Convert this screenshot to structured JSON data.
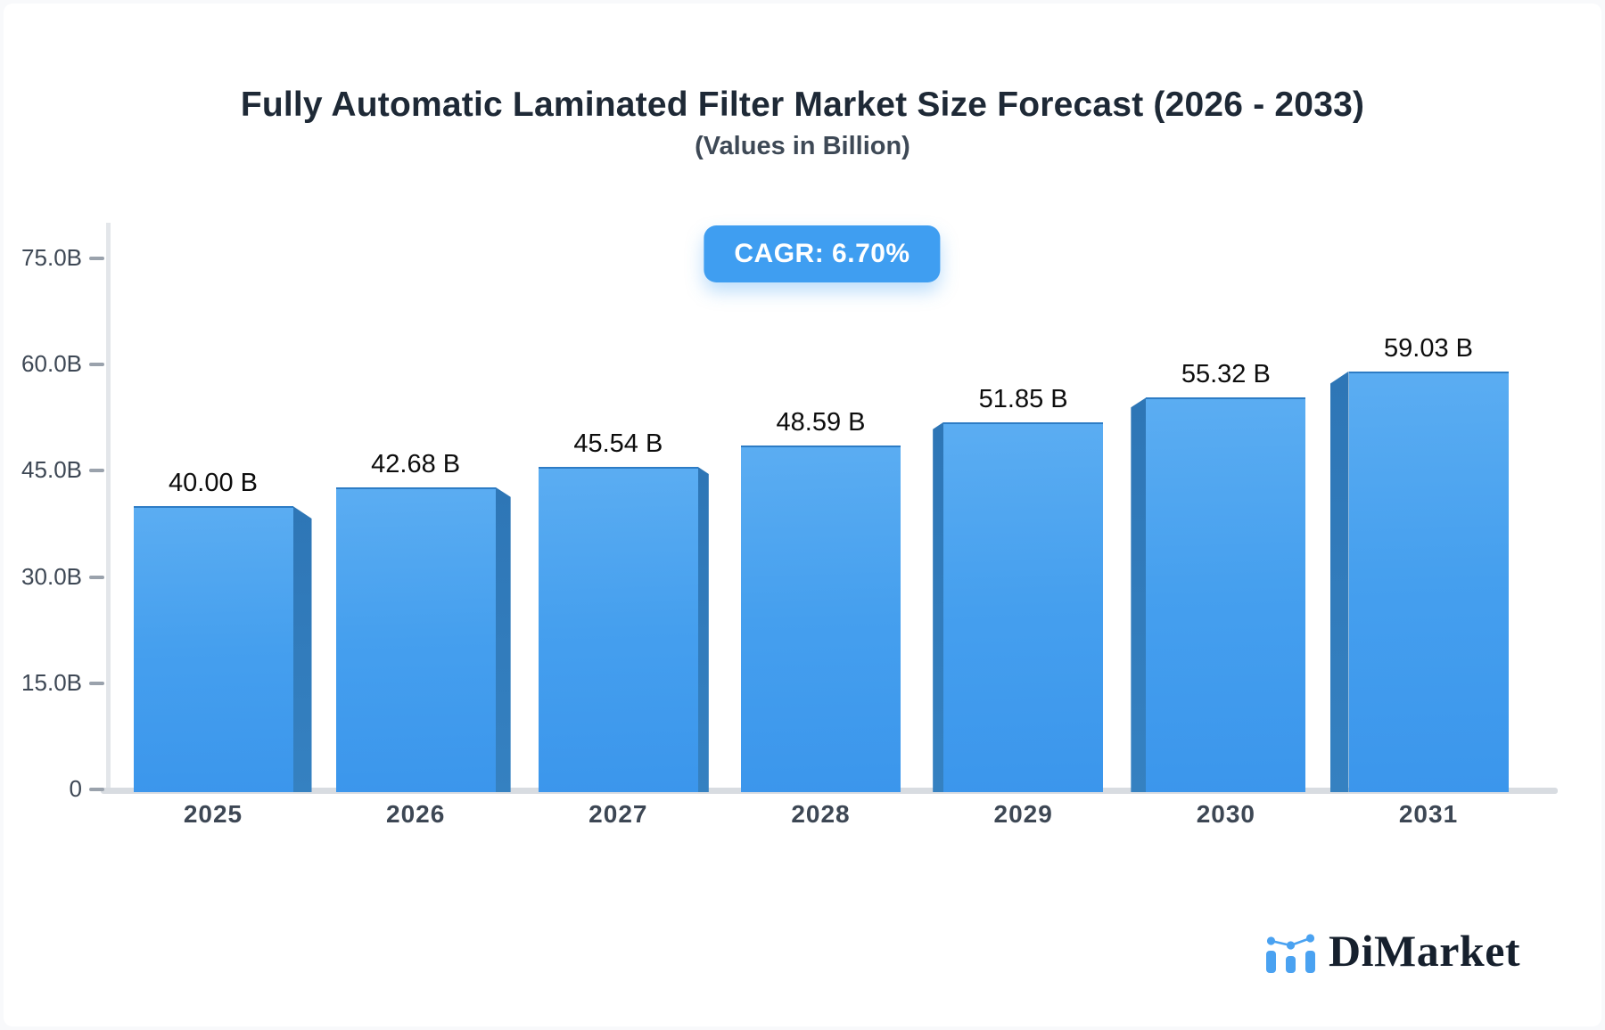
{
  "header": {
    "title": "Fully Automatic Laminated Filter Market Size Forecast (2026 - 2033)",
    "subtitle": "(Values in Billion)"
  },
  "badge": {
    "label": "CAGR: 6.70%"
  },
  "chart_data": {
    "type": "bar",
    "title": "Fully Automatic Laminated Filter Market Size Forecast (2026 - 2033)",
    "subtitle": "(Values in Billion)",
    "cagr": "6.70%",
    "categories": [
      "2025",
      "2026",
      "2027",
      "2028",
      "2029",
      "2030",
      "2031"
    ],
    "values": [
      40.0,
      42.68,
      45.54,
      48.59,
      51.85,
      55.32,
      59.03
    ],
    "value_labels": [
      "40.00 B",
      "42.68 B",
      "45.54 B",
      "48.59 B",
      "51.85 B",
      "55.32 B",
      "59.03 B"
    ],
    "ylim": [
      0,
      75
    ],
    "yticks": {
      "values": [
        0,
        15,
        30,
        45,
        60,
        75
      ],
      "labels": [
        "0",
        "15.0B",
        "30.0B",
        "45.0B",
        "60.0B",
        "75.0B"
      ]
    },
    "grid": false,
    "legend": null,
    "style_3d": true
  },
  "logo": {
    "text": "DiMarket",
    "icon": "bar-chart-logo-icon"
  },
  "colors": {
    "accent_blue": "#3f9ef1",
    "bar_face_top": "#5badf2",
    "bar_face_bottom": "#3b96ec",
    "bar_side": "#2e76b6",
    "axis_line": "#d8dce1",
    "tick_dash": "#9aa2ac",
    "axis_text": "#3d4754",
    "value_text": "#0d0d0d",
    "title_text": "#1e2936",
    "logo_text": "#16202d",
    "logo_icon": "#4aa2f1",
    "page_bg": "#f8f9fb",
    "card_bg": "#ffffff"
  }
}
